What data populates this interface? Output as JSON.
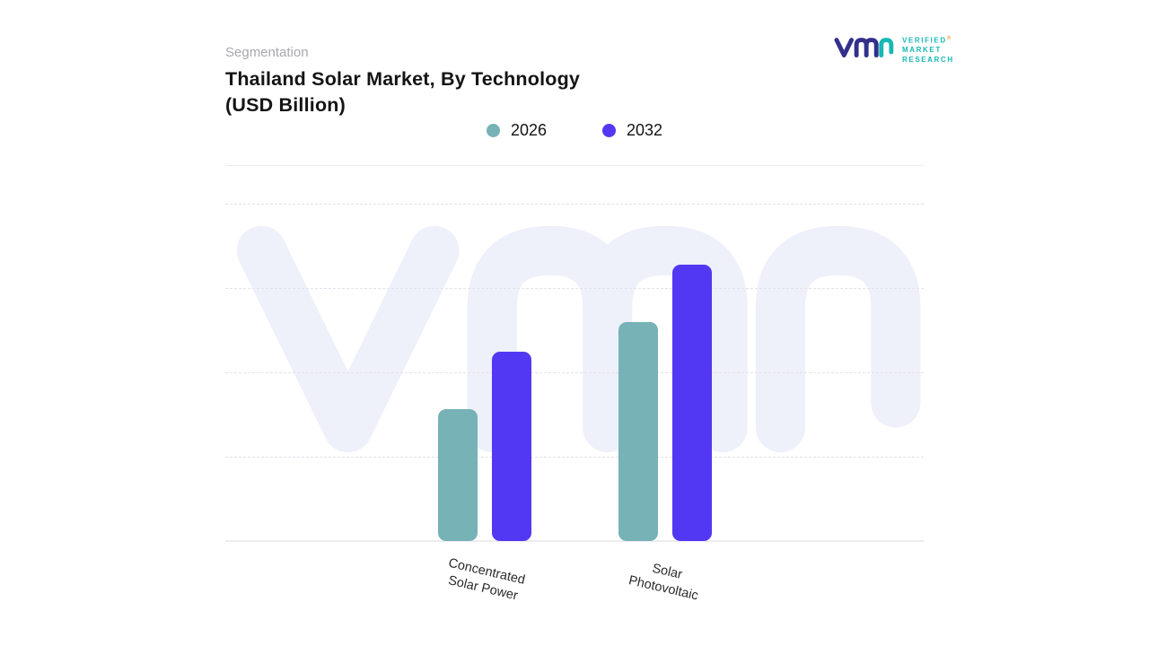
{
  "header": {
    "eyebrow": "Segmentation",
    "title_line1": "Thailand Solar Market, By Technology",
    "title_line2": "(USD Billion)"
  },
  "logo": {
    "lines": [
      "VERIFIED",
      "MARKET",
      "RESEARCH"
    ],
    "reg": "®",
    "teal": "#16b8b4",
    "indigo": "#33308c",
    "orange": "#f59e3c"
  },
  "legend": [
    {
      "label": "2026",
      "color": "#76b2b6"
    },
    {
      "label": "2032",
      "color": "#5238f2"
    }
  ],
  "colors": {
    "series_2026": "#76b2b6",
    "series_2032": "#5238f2",
    "watermark": "#eef0fa",
    "gridline": "#e2e2ea",
    "eyebrow_gray": "#a7a7ad"
  },
  "chart_data": {
    "type": "bar",
    "title": "Thailand Solar Market, By Technology (USD Billion)",
    "categories": [
      "Concentrated\nSolar Power",
      "Solar\nPhotovoltaic"
    ],
    "series": [
      {
        "name": "2026",
        "color": "#76b2b6",
        "values": [
          1.95,
          3.25
        ]
      },
      {
        "name": "2032",
        "color": "#5238f2",
        "values": [
          2.8,
          4.1
        ]
      }
    ],
    "xlabel": "",
    "ylabel": "",
    "ylim": [
      0,
      5
    ],
    "gridlines": 5,
    "grid_style": "dashed-horizontal",
    "legend_position": "top-center",
    "y_axis_labels_visible": false,
    "watermark": "vmr"
  }
}
